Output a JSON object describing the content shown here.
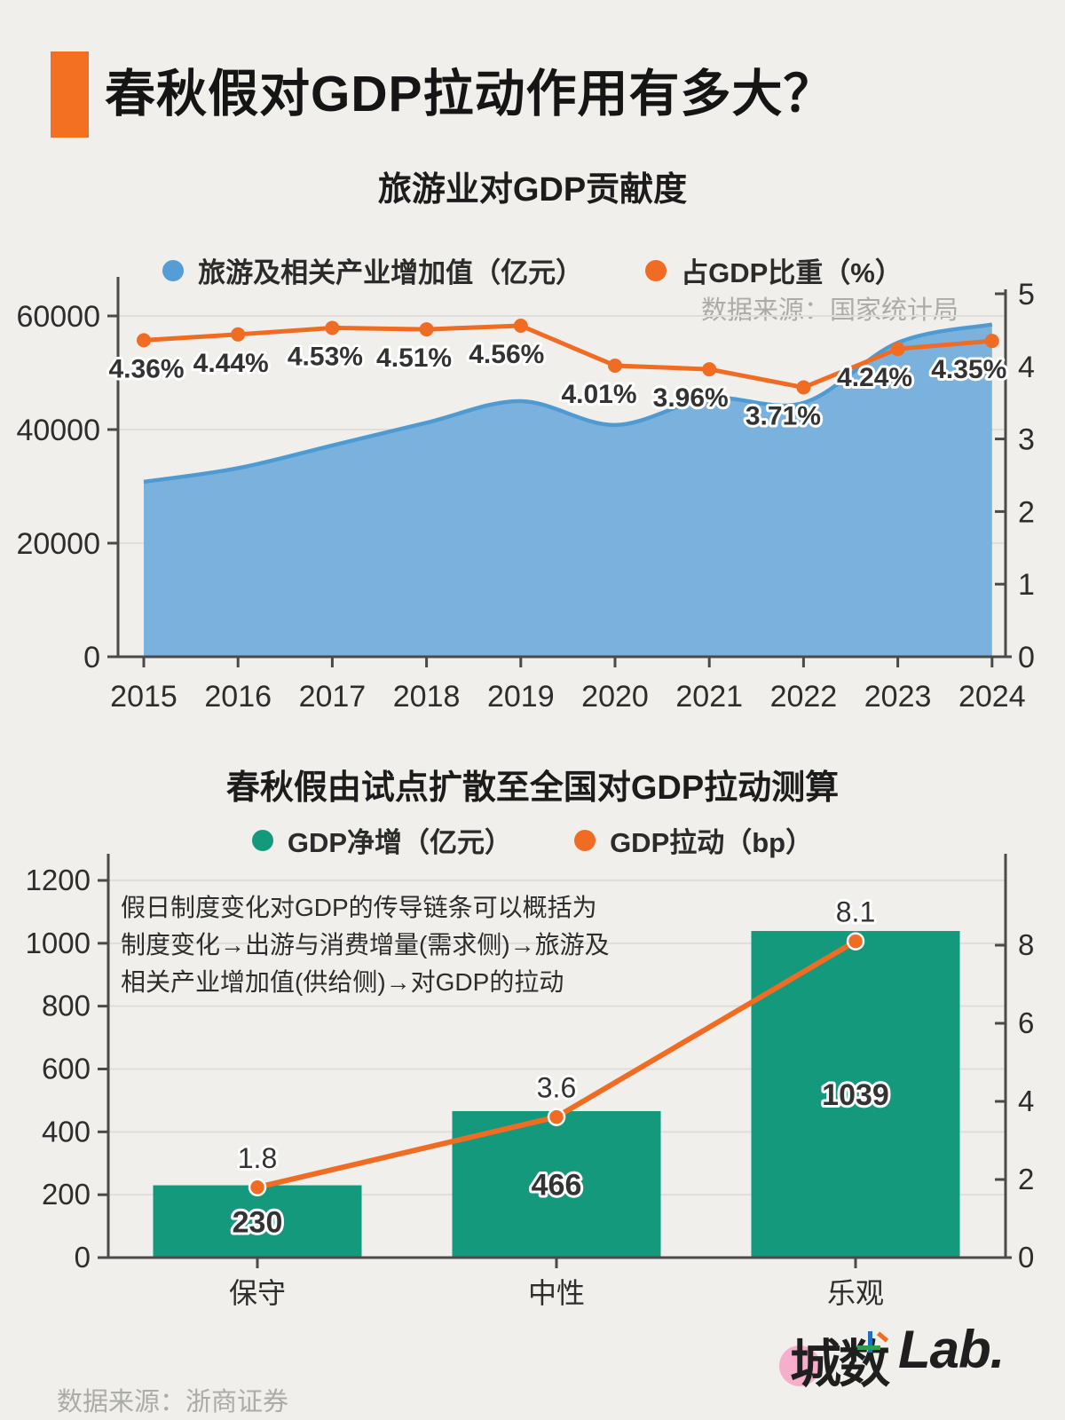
{
  "page": {
    "background": "#F0EFEC"
  },
  "header": {
    "title": "春秋假对GDP拉动作用有多大？",
    "accent_color": "#F36F21"
  },
  "chart_data": [
    {
      "type": "area+line",
      "title": "旅游业对GDP贡献度",
      "source": "数据来源：国家统计局",
      "x": [
        2015,
        2016,
        2017,
        2018,
        2019,
        2020,
        2021,
        2022,
        2023,
        2024
      ],
      "left_axis": {
        "range": [
          0,
          60000
        ],
        "ticks": [
          0,
          20000,
          40000,
          60000
        ]
      },
      "right_axis": {
        "range": [
          0,
          5
        ],
        "ticks": [
          0,
          1,
          2,
          3,
          4,
          5
        ]
      },
      "grid": true,
      "legend_position": "top",
      "series": [
        {
          "name": "旅游及相关产业增加值（亿元）",
          "type": "area",
          "axis": "left",
          "color": "#559DD6",
          "fill": "#7BB2DD",
          "stroke": "#4E9BD3",
          "values": [
            30800,
            33200,
            37200,
            41200,
            45000,
            40800,
            45500,
            44700,
            55300,
            58500
          ]
        },
        {
          "name": "占GDP比重（%）",
          "type": "line",
          "axis": "right",
          "color": "#F06C23",
          "values": [
            4.36,
            4.44,
            4.53,
            4.51,
            4.56,
            4.01,
            3.96,
            3.71,
            4.24,
            4.35
          ],
          "point_labels": [
            "4.36%",
            "4.44%",
            "4.53%",
            "4.51%",
            "4.56%",
            "4.01%",
            "3.96%",
            "3.71%",
            "4.24%",
            "4.35%"
          ]
        }
      ]
    },
    {
      "type": "bar+line",
      "title": "春秋假由试点扩散至全国对GDP拉动测算",
      "categories": [
        "保守",
        "中性",
        "乐观"
      ],
      "left_axis": {
        "range": [
          0,
          1200
        ],
        "ticks": [
          0,
          200,
          400,
          600,
          800,
          1000,
          1200
        ]
      },
      "right_axis": {
        "range": [
          0,
          8
        ],
        "ticks": [
          0,
          2,
          4,
          6,
          8
        ]
      },
      "grid": true,
      "legend_position": "top",
      "annotation": [
        "假日制度变化对GDP的传导链条可以概括为",
        "制度变化→出游与消费增量(需求侧)→旅游及",
        "相关产业增加值(供给侧)→对GDP的拉动"
      ],
      "series": [
        {
          "name": "GDP净增（亿元）",
          "type": "bar",
          "axis": "left",
          "color": "#14997C",
          "values": [
            230,
            466,
            1039
          ],
          "bar_labels": [
            "230",
            "466",
            "1039"
          ]
        },
        {
          "name": "GDP拉动（bp）",
          "type": "line",
          "axis": "right",
          "color": "#F06C23",
          "values": [
            1.8,
            3.6,
            8.1
          ],
          "point_labels": [
            "1.8",
            "3.6",
            "8.1"
          ]
        }
      ]
    }
  ],
  "footer": {
    "source": "数据来源：浙商证券",
    "logo": {
      "part1": "城数",
      "part2": "Lab.",
      "accent_pink": "#F7AECA",
      "accent_blue": "#1D6FC0",
      "accent_green": "#2E9E52",
      "accent_orange": "#F06C23"
    }
  }
}
